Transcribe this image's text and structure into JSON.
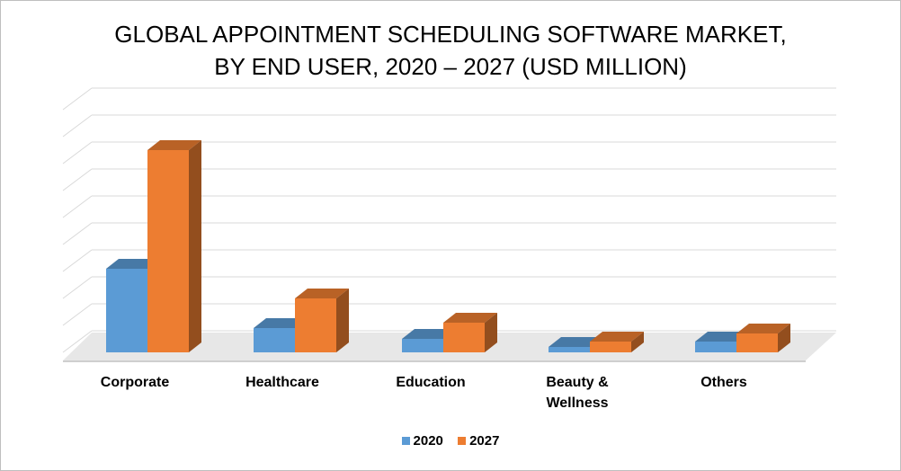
{
  "chart_data": {
    "type": "bar",
    "title_lines": [
      "GLOBAL APPOINTMENT SCHEDULING SOFTWARE MARKET,",
      "BY END USER, 2020 – 2027 (USD MILLION)"
    ],
    "categories": [
      "Corporate",
      "Healthcare",
      "Education",
      "Beauty & Wellness",
      "Others"
    ],
    "category_lines": [
      [
        "Corporate"
      ],
      [
        "Healthcare"
      ],
      [
        "Education"
      ],
      [
        "Beauty &",
        "Wellness"
      ],
      [
        "Others"
      ]
    ],
    "series": [
      {
        "name": "2020",
        "color": "#5b9bd5",
        "values": [
          3.1,
          0.9,
          0.5,
          0.2,
          0.4
        ]
      },
      {
        "name": "2027",
        "color": "#ed7d31",
        "values": [
          7.5,
          2.0,
          1.1,
          0.4,
          0.7
        ]
      }
    ],
    "ylim": [
      0,
      9
    ],
    "y_axis_labels_shown": false,
    "grid": true,
    "style": "3d-clustered-column",
    "legend_position": "bottom"
  }
}
